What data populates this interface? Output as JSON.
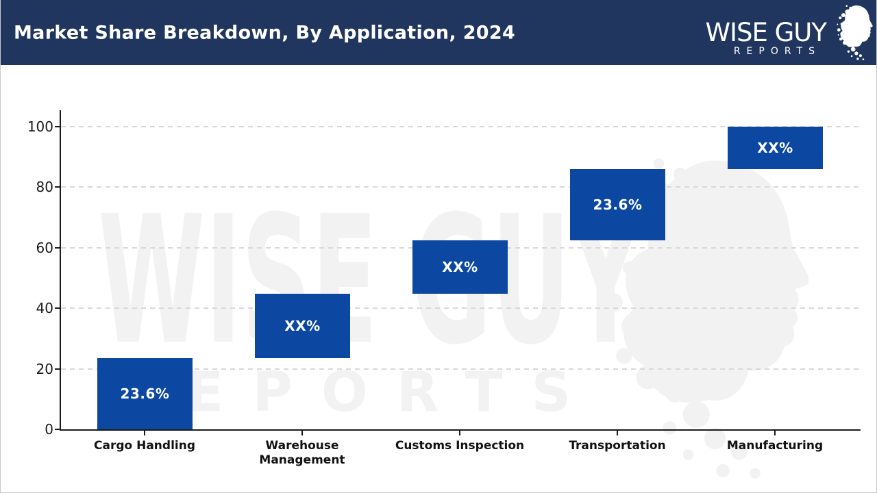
{
  "header": {
    "logo": {
      "brand": "WISE GUY",
      "sub": "REPORTS"
    }
  },
  "watermark": {
    "brand": "WISE GUY",
    "sub": "REPORTS"
  },
  "colors": {
    "header_bg": "#21365f",
    "bar": "#0c47a1",
    "bar_label": "#ffffff",
    "gridline": "#d8d8d8",
    "watermark": "#f2f2f2"
  },
  "chart_data": {
    "type": "bar",
    "subtype": "waterfall",
    "title": "Market Share Breakdown, By Application, 2024",
    "categories": [
      "Cargo Handling",
      "Warehouse Management",
      "Customs Inspection",
      "Transportation",
      "Manufacturing"
    ],
    "series": [
      {
        "name": "Market Share",
        "segments": [
          {
            "start": 0,
            "end": 23.6,
            "label": "23.6%"
          },
          {
            "start": 23.6,
            "end": 44.8,
            "label": "XX%"
          },
          {
            "start": 44.8,
            "end": 62.4,
            "label": "XX%"
          },
          {
            "start": 62.4,
            "end": 86.0,
            "label": "23.6%"
          },
          {
            "start": 86.0,
            "end": 100.0,
            "label": "XX%"
          }
        ]
      }
    ],
    "xlabel": "",
    "ylabel": "",
    "ylim": [
      0,
      105
    ],
    "yticks": [
      0,
      20,
      40,
      60,
      80,
      100
    ],
    "grid": "horizontal-dashed",
    "legend": "none",
    "bar_color": "#0c47a1",
    "bar_label_color": "#ffffff"
  }
}
